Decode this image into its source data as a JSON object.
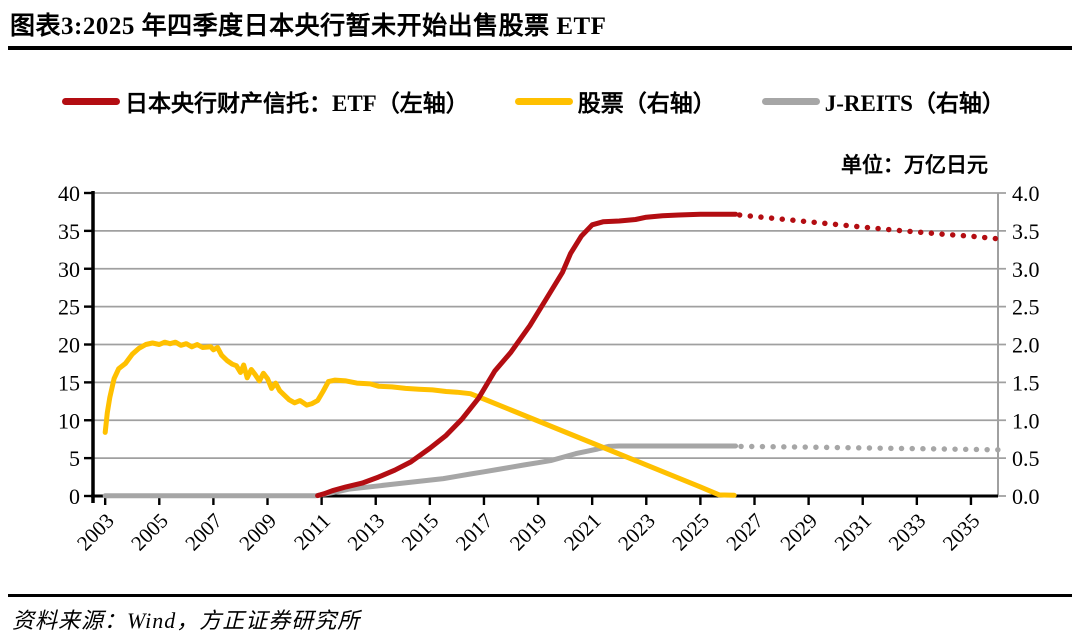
{
  "title": "图表3:2025 年四季度日本央行暂未开始出售股票 ETF",
  "unit_label": "单位：万亿日元",
  "source": "资料来源：Wind，方正证券研究所",
  "colors": {
    "etf_red": "#b30d12",
    "stocks_yellow": "#ffc000",
    "jreits_gray": "#a6a6a6",
    "grid": "#a0a0a0",
    "axis": "#000000"
  },
  "legend": [
    {
      "label": "日本央行财产信托：ETF（左轴）",
      "color": "#b30d12"
    },
    {
      "label": "股票（右轴）",
      "color": "#ffc000"
    },
    {
      "label": "J-REITS（右轴）",
      "color": "#a6a6a6"
    }
  ],
  "chart_data": {
    "type": "line",
    "title": "图表3:2025 年四季度日本央行暂未开始出售股票 ETF",
    "unit": "万亿日元",
    "grid": true,
    "x_axis": {
      "domain": [
        2002.55,
        2036.0
      ],
      "tick_values": [
        2003,
        2005,
        2007,
        2009,
        2011,
        2013,
        2015,
        2017,
        2019,
        2021,
        2023,
        2025,
        2027,
        2029,
        2031,
        2033,
        2035
      ],
      "tick_labels": [
        "2003",
        "2005",
        "2007",
        "2009",
        "2011",
        "2013",
        "2015",
        "2017",
        "2019",
        "2021",
        "2023",
        "2025",
        "2027",
        "2029",
        "2031",
        "2033",
        "2035"
      ]
    },
    "left_axis": {
      "min": 0,
      "max": 40,
      "step": 5,
      "tick_values": [
        0,
        5,
        10,
        15,
        20,
        25,
        30,
        35,
        40
      ],
      "tick_labels": [
        "0",
        "5",
        "10",
        "15",
        "20",
        "25",
        "30",
        "35",
        "40"
      ]
    },
    "right_axis": {
      "min": 0,
      "max": 4,
      "step": 0.5,
      "tick_values": [
        0,
        0.5,
        1,
        1.5,
        2,
        2.5,
        3,
        3.5,
        4
      ],
      "tick_labels": [
        "0.0",
        "0.5",
        "1.0",
        "1.5",
        "2.0",
        "2.5",
        "3.0",
        "3.5",
        "4.0"
      ]
    },
    "series": [
      {
        "id": "etf",
        "name": "日本央行财产信托：ETF（左轴）",
        "axis": "left",
        "color": "#b30d12",
        "solid": [
          [
            2010.85,
            0.05
          ],
          [
            2011.1,
            0.3
          ],
          [
            2011.4,
            0.7
          ],
          [
            2011.9,
            1.2
          ],
          [
            2012.5,
            1.7
          ],
          [
            2013.1,
            2.5
          ],
          [
            2013.7,
            3.4
          ],
          [
            2014.3,
            4.5
          ],
          [
            2015.0,
            6.3
          ],
          [
            2015.6,
            8.0
          ],
          [
            2016.2,
            10.2
          ],
          [
            2016.8,
            12.9
          ],
          [
            2017.4,
            16.5
          ],
          [
            2018.0,
            19.0
          ],
          [
            2018.7,
            22.5
          ],
          [
            2019.3,
            26.0
          ],
          [
            2019.9,
            29.5
          ],
          [
            2020.2,
            32.0
          ],
          [
            2020.6,
            34.3
          ],
          [
            2021.0,
            35.8
          ],
          [
            2021.4,
            36.2
          ],
          [
            2022.0,
            36.3
          ],
          [
            2022.6,
            36.5
          ],
          [
            2023.0,
            36.8
          ],
          [
            2023.6,
            37.0
          ],
          [
            2024.2,
            37.1
          ],
          [
            2025.0,
            37.2
          ],
          [
            2026.3,
            37.2
          ]
        ],
        "dotted": [
          [
            2026.45,
            37.1
          ],
          [
            2027,
            36.9
          ],
          [
            2028,
            36.55
          ],
          [
            2029,
            36.2
          ],
          [
            2030,
            35.85
          ],
          [
            2031,
            35.5
          ],
          [
            2032,
            35.15
          ],
          [
            2033,
            34.85
          ],
          [
            2034,
            34.55
          ],
          [
            2035,
            34.3
          ],
          [
            2036.0,
            33.95
          ]
        ]
      },
      {
        "id": "stocks",
        "name": "股票（右轴）",
        "axis": "right",
        "color": "#ffc000",
        "solid": [
          [
            2003.0,
            0.84
          ],
          [
            2003.08,
            1.1
          ],
          [
            2003.17,
            1.3
          ],
          [
            2003.33,
            1.55
          ],
          [
            2003.5,
            1.68
          ],
          [
            2003.75,
            1.75
          ],
          [
            2004.0,
            1.87
          ],
          [
            2004.25,
            1.95
          ],
          [
            2004.5,
            2.0
          ],
          [
            2004.75,
            2.02
          ],
          [
            2005.0,
            2.0
          ],
          [
            2005.2,
            2.03
          ],
          [
            2005.4,
            2.01
          ],
          [
            2005.6,
            2.03
          ],
          [
            2005.8,
            1.99
          ],
          [
            2006.0,
            2.01
          ],
          [
            2006.2,
            1.97
          ],
          [
            2006.4,
            2.0
          ],
          [
            2006.6,
            1.96
          ],
          [
            2006.9,
            1.97
          ],
          [
            2007.0,
            1.93
          ],
          [
            2007.15,
            1.96
          ],
          [
            2007.3,
            1.86
          ],
          [
            2007.5,
            1.79
          ],
          [
            2007.7,
            1.74
          ],
          [
            2007.85,
            1.72
          ],
          [
            2008.0,
            1.63
          ],
          [
            2008.12,
            1.73
          ],
          [
            2008.25,
            1.56
          ],
          [
            2008.4,
            1.67
          ],
          [
            2008.55,
            1.6
          ],
          [
            2008.7,
            1.52
          ],
          [
            2008.85,
            1.62
          ],
          [
            2009.0,
            1.55
          ],
          [
            2009.15,
            1.42
          ],
          [
            2009.3,
            1.49
          ],
          [
            2009.45,
            1.39
          ],
          [
            2009.6,
            1.34
          ],
          [
            2009.8,
            1.27
          ],
          [
            2010.0,
            1.23
          ],
          [
            2010.2,
            1.26
          ],
          [
            2010.45,
            1.2
          ],
          [
            2010.65,
            1.22
          ],
          [
            2010.85,
            1.26
          ],
          [
            2011.05,
            1.38
          ],
          [
            2011.25,
            1.51
          ],
          [
            2011.5,
            1.53
          ],
          [
            2011.9,
            1.52
          ],
          [
            2012.3,
            1.49
          ],
          [
            2012.8,
            1.48
          ],
          [
            2013.1,
            1.45
          ],
          [
            2013.6,
            1.44
          ],
          [
            2014.1,
            1.42
          ],
          [
            2014.6,
            1.41
          ],
          [
            2015.1,
            1.4
          ],
          [
            2015.6,
            1.38
          ],
          [
            2016.0,
            1.37
          ],
          [
            2016.5,
            1.35
          ],
          [
            2017.0,
            1.28
          ],
          [
            2018.0,
            1.135
          ],
          [
            2019.0,
            0.99
          ],
          [
            2020.0,
            0.845
          ],
          [
            2021.0,
            0.7
          ],
          [
            2022.0,
            0.555
          ],
          [
            2023.0,
            0.41
          ],
          [
            2024.0,
            0.265
          ],
          [
            2025.0,
            0.12
          ],
          [
            2025.7,
            0.015
          ],
          [
            2026.25,
            0.01
          ]
        ],
        "dotted": []
      },
      {
        "id": "jreits",
        "name": "J-REITS（右轴）",
        "axis": "right",
        "color": "#a6a6a6",
        "solid": [
          [
            2003.0,
            0.004
          ],
          [
            2010.8,
            0.004
          ],
          [
            2011.2,
            0.03
          ],
          [
            2011.6,
            0.06
          ],
          [
            2012.0,
            0.09
          ],
          [
            2012.5,
            0.11
          ],
          [
            2013.0,
            0.13
          ],
          [
            2013.5,
            0.15
          ],
          [
            2014.0,
            0.17
          ],
          [
            2014.5,
            0.19
          ],
          [
            2015.0,
            0.21
          ],
          [
            2015.5,
            0.23
          ],
          [
            2016.0,
            0.26
          ],
          [
            2016.5,
            0.29
          ],
          [
            2017.0,
            0.32
          ],
          [
            2017.5,
            0.35
          ],
          [
            2018.0,
            0.38
          ],
          [
            2018.5,
            0.41
          ],
          [
            2019.0,
            0.44
          ],
          [
            2019.5,
            0.47
          ],
          [
            2020.0,
            0.52
          ],
          [
            2020.4,
            0.56
          ],
          [
            2020.8,
            0.59
          ],
          [
            2021.2,
            0.62
          ],
          [
            2021.6,
            0.655
          ],
          [
            2022.0,
            0.66
          ],
          [
            2026.3,
            0.66
          ]
        ],
        "dotted": [
          [
            2026.5,
            0.655
          ],
          [
            2028,
            0.65
          ],
          [
            2030,
            0.64
          ],
          [
            2032,
            0.63
          ],
          [
            2034,
            0.62
          ],
          [
            2036.0,
            0.61
          ]
        ]
      }
    ]
  }
}
